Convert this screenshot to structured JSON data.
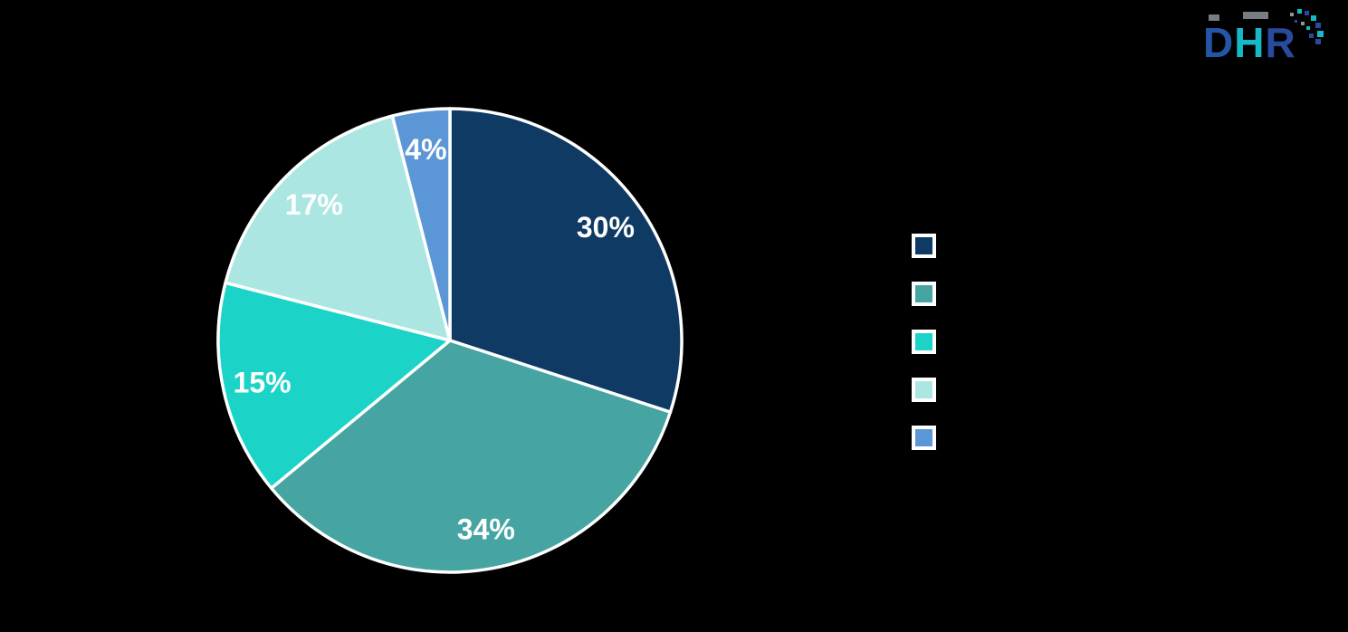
{
  "background": "#000000",
  "chart_data": {
    "type": "pie",
    "labels": [
      "30%",
      "34%",
      "15%",
      "17%",
      "4%"
    ],
    "values": [
      30,
      34,
      15,
      17,
      4
    ],
    "colors": [
      "#0e3a63",
      "#46a5a2",
      "#1cd3c7",
      "#abe6e2",
      "#5b96d6"
    ],
    "start_angle_deg": 0,
    "direction": "clockwise",
    "slice_stroke_color": "#ffffff",
    "label_color": "#ffffff",
    "legend_position": "right",
    "legend_labels_visible": false,
    "legend_swatch_border_color": "#ffffff",
    "title": ""
  },
  "logo": {
    "text": "DHR",
    "letters": [
      {
        "char": "D",
        "color": "#2456a8"
      },
      {
        "char": "H",
        "color": "#16b9c8"
      },
      {
        "char": "R",
        "color": "#2a4aa0"
      }
    ],
    "dot_colors": [
      "#16b9c8",
      "#2a4aa0",
      "#8d9399"
    ]
  }
}
